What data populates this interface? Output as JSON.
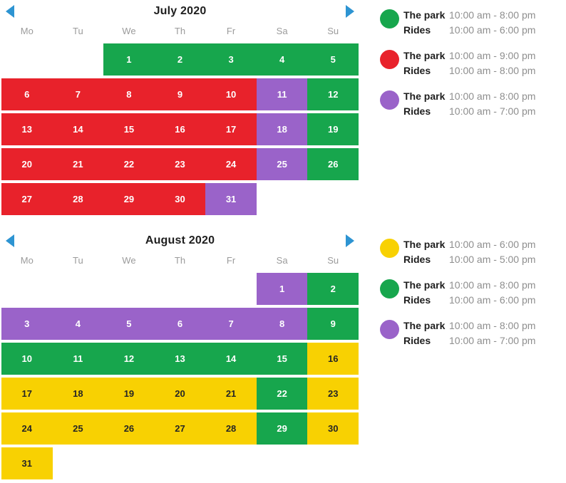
{
  "colors": {
    "green": "#17a64d",
    "red": "#e8222b",
    "purple": "#9a63c9",
    "yellow": "#f8d102",
    "nav_arrow": "#2d94d2"
  },
  "calendars": [
    {
      "title": "July 2020",
      "weekdays": [
        "Mo",
        "Tu",
        "We",
        "Th",
        "Fr",
        "Sa",
        "Su"
      ],
      "weeks": [
        [
          {
            "day": "",
            "color": null
          },
          {
            "day": "",
            "color": null
          },
          {
            "day": "1",
            "color": "green"
          },
          {
            "day": "2",
            "color": "green"
          },
          {
            "day": "3",
            "color": "green"
          },
          {
            "day": "4",
            "color": "green"
          },
          {
            "day": "5",
            "color": "green"
          }
        ],
        [
          {
            "day": "6",
            "color": "red"
          },
          {
            "day": "7",
            "color": "red"
          },
          {
            "day": "8",
            "color": "red"
          },
          {
            "day": "9",
            "color": "red"
          },
          {
            "day": "10",
            "color": "red"
          },
          {
            "day": "11",
            "color": "purple"
          },
          {
            "day": "12",
            "color": "green"
          }
        ],
        [
          {
            "day": "13",
            "color": "red"
          },
          {
            "day": "14",
            "color": "red"
          },
          {
            "day": "15",
            "color": "red"
          },
          {
            "day": "16",
            "color": "red"
          },
          {
            "day": "17",
            "color": "red"
          },
          {
            "day": "18",
            "color": "purple"
          },
          {
            "day": "19",
            "color": "green"
          }
        ],
        [
          {
            "day": "20",
            "color": "red"
          },
          {
            "day": "21",
            "color": "red"
          },
          {
            "day": "22",
            "color": "red"
          },
          {
            "day": "23",
            "color": "red"
          },
          {
            "day": "24",
            "color": "red"
          },
          {
            "day": "25",
            "color": "purple"
          },
          {
            "day": "26",
            "color": "green"
          }
        ],
        [
          {
            "day": "27",
            "color": "red"
          },
          {
            "day": "28",
            "color": "red"
          },
          {
            "day": "29",
            "color": "red"
          },
          {
            "day": "30",
            "color": "red"
          },
          {
            "day": "31",
            "color": "purple"
          },
          {
            "day": "",
            "color": null
          },
          {
            "day": "",
            "color": null
          }
        ]
      ],
      "legend": [
        {
          "color": "green",
          "park_label": "The park",
          "park_hours": "10:00 am - 8:00 pm",
          "rides_label": "Rides",
          "rides_hours": "10:00 am - 6:00 pm"
        },
        {
          "color": "red",
          "park_label": "The park",
          "park_hours": "10:00 am - 9:00 pm",
          "rides_label": "Rides",
          "rides_hours": "10:00 am - 8:00 pm"
        },
        {
          "color": "purple",
          "park_label": "The park",
          "park_hours": "10:00 am - 8:00 pm",
          "rides_label": "Rides",
          "rides_hours": "10:00 am - 7:00 pm"
        }
      ]
    },
    {
      "title": "August 2020",
      "weekdays": [
        "Mo",
        "Tu",
        "We",
        "Th",
        "Fr",
        "Sa",
        "Su"
      ],
      "weeks": [
        [
          {
            "day": "",
            "color": null
          },
          {
            "day": "",
            "color": null
          },
          {
            "day": "",
            "color": null
          },
          {
            "day": "",
            "color": null
          },
          {
            "day": "",
            "color": null
          },
          {
            "day": "1",
            "color": "purple"
          },
          {
            "day": "2",
            "color": "green"
          }
        ],
        [
          {
            "day": "3",
            "color": "purple"
          },
          {
            "day": "4",
            "color": "purple"
          },
          {
            "day": "5",
            "color": "purple"
          },
          {
            "day": "6",
            "color": "purple"
          },
          {
            "day": "7",
            "color": "purple"
          },
          {
            "day": "8",
            "color": "purple"
          },
          {
            "day": "9",
            "color": "green"
          }
        ],
        [
          {
            "day": "10",
            "color": "green"
          },
          {
            "day": "11",
            "color": "green"
          },
          {
            "day": "12",
            "color": "green"
          },
          {
            "day": "13",
            "color": "green"
          },
          {
            "day": "14",
            "color": "green"
          },
          {
            "day": "15",
            "color": "green"
          },
          {
            "day": "16",
            "color": "yellow"
          }
        ],
        [
          {
            "day": "17",
            "color": "yellow"
          },
          {
            "day": "18",
            "color": "yellow"
          },
          {
            "day": "19",
            "color": "yellow"
          },
          {
            "day": "20",
            "color": "yellow"
          },
          {
            "day": "21",
            "color": "yellow"
          },
          {
            "day": "22",
            "color": "green"
          },
          {
            "day": "23",
            "color": "yellow"
          }
        ],
        [
          {
            "day": "24",
            "color": "yellow"
          },
          {
            "day": "25",
            "color": "yellow"
          },
          {
            "day": "26",
            "color": "yellow"
          },
          {
            "day": "27",
            "color": "yellow"
          },
          {
            "day": "28",
            "color": "yellow"
          },
          {
            "day": "29",
            "color": "green"
          },
          {
            "day": "30",
            "color": "yellow"
          }
        ],
        [
          {
            "day": "31",
            "color": "yellow"
          },
          {
            "day": "",
            "color": null
          },
          {
            "day": "",
            "color": null
          },
          {
            "day": "",
            "color": null
          },
          {
            "day": "",
            "color": null
          },
          {
            "day": "",
            "color": null
          },
          {
            "day": "",
            "color": null
          }
        ]
      ],
      "legend": [
        {
          "color": "yellow",
          "park_label": "The park",
          "park_hours": "10:00 am - 6:00 pm",
          "rides_label": "Rides",
          "rides_hours": "10:00 am - 5:00 pm"
        },
        {
          "color": "green",
          "park_label": "The park",
          "park_hours": "10:00 am - 8:00 pm",
          "rides_label": "Rides",
          "rides_hours": "10:00 am - 6:00 pm"
        },
        {
          "color": "purple",
          "park_label": "The park",
          "park_hours": "10:00 am - 8:00 pm",
          "rides_label": "Rides",
          "rides_hours": "10:00 am - 7:00 pm"
        }
      ]
    }
  ]
}
